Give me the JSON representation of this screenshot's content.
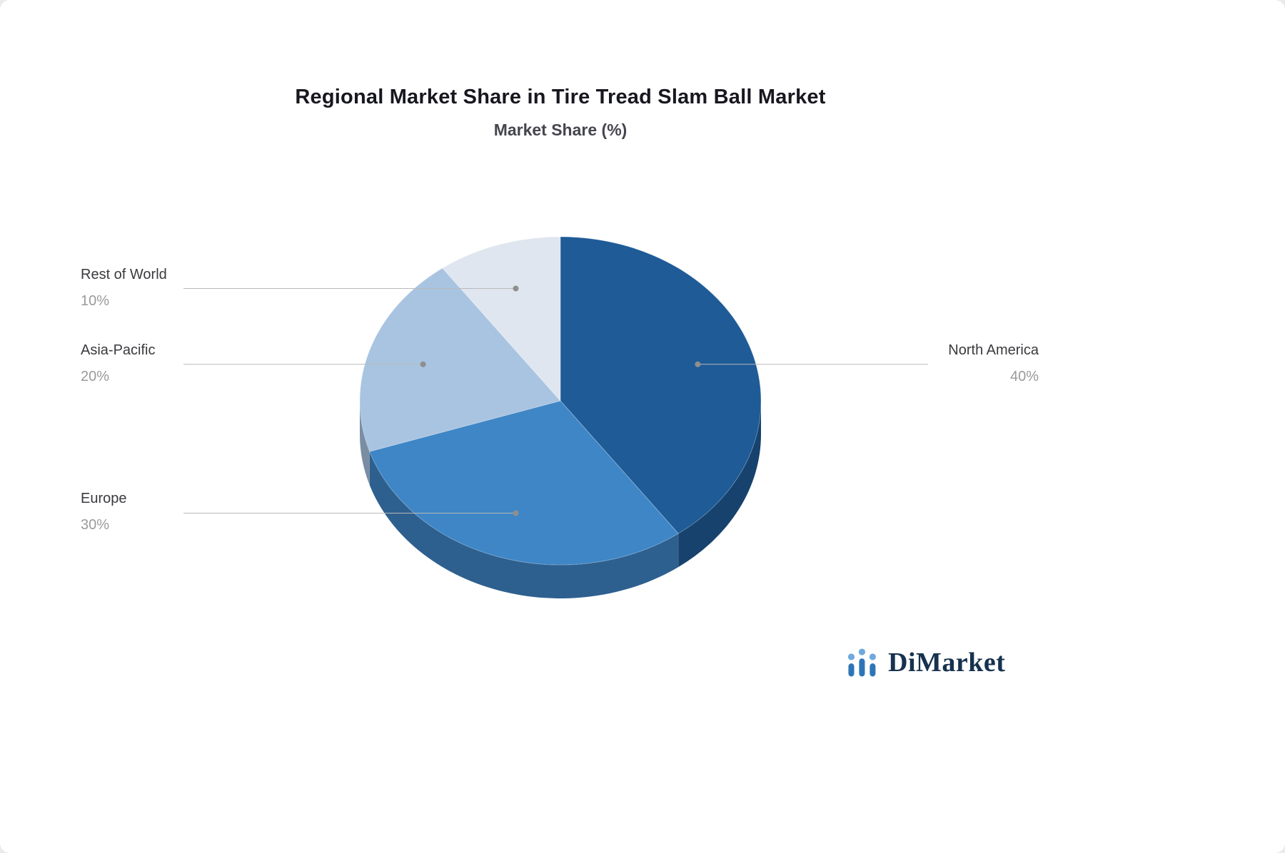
{
  "title": "Regional Market Share in Tire Tread Slam Ball Market",
  "subtitle": "Market Share (%)",
  "brand": {
    "name": "DiMarket",
    "icon": "bar-chart-icon",
    "text_color": "#16324f",
    "icon_color": "#2e75b6",
    "icon_dot_color": "#6fa8dc"
  },
  "chart_data": {
    "type": "pie",
    "title": "Regional Market Share in Tire Tread Slam Ball Market",
    "subtitle": "Market Share (%)",
    "unit": "%",
    "style": "3d-pie",
    "start_angle_deg": -90,
    "direction": "clockwise",
    "legend_position": "callout-labels",
    "slices": [
      {
        "label": "North America",
        "value": 40,
        "display": "40%",
        "color": "#1e5b97"
      },
      {
        "label": "Europe",
        "value": 30,
        "display": "30%",
        "color": "#3e86c6"
      },
      {
        "label": "Asia-Pacific",
        "value": 20,
        "display": "20%",
        "color": "#a9c4e1"
      },
      {
        "label": "Rest of World",
        "value": 10,
        "display": "10%",
        "color": "#dfe6ef"
      }
    ]
  }
}
